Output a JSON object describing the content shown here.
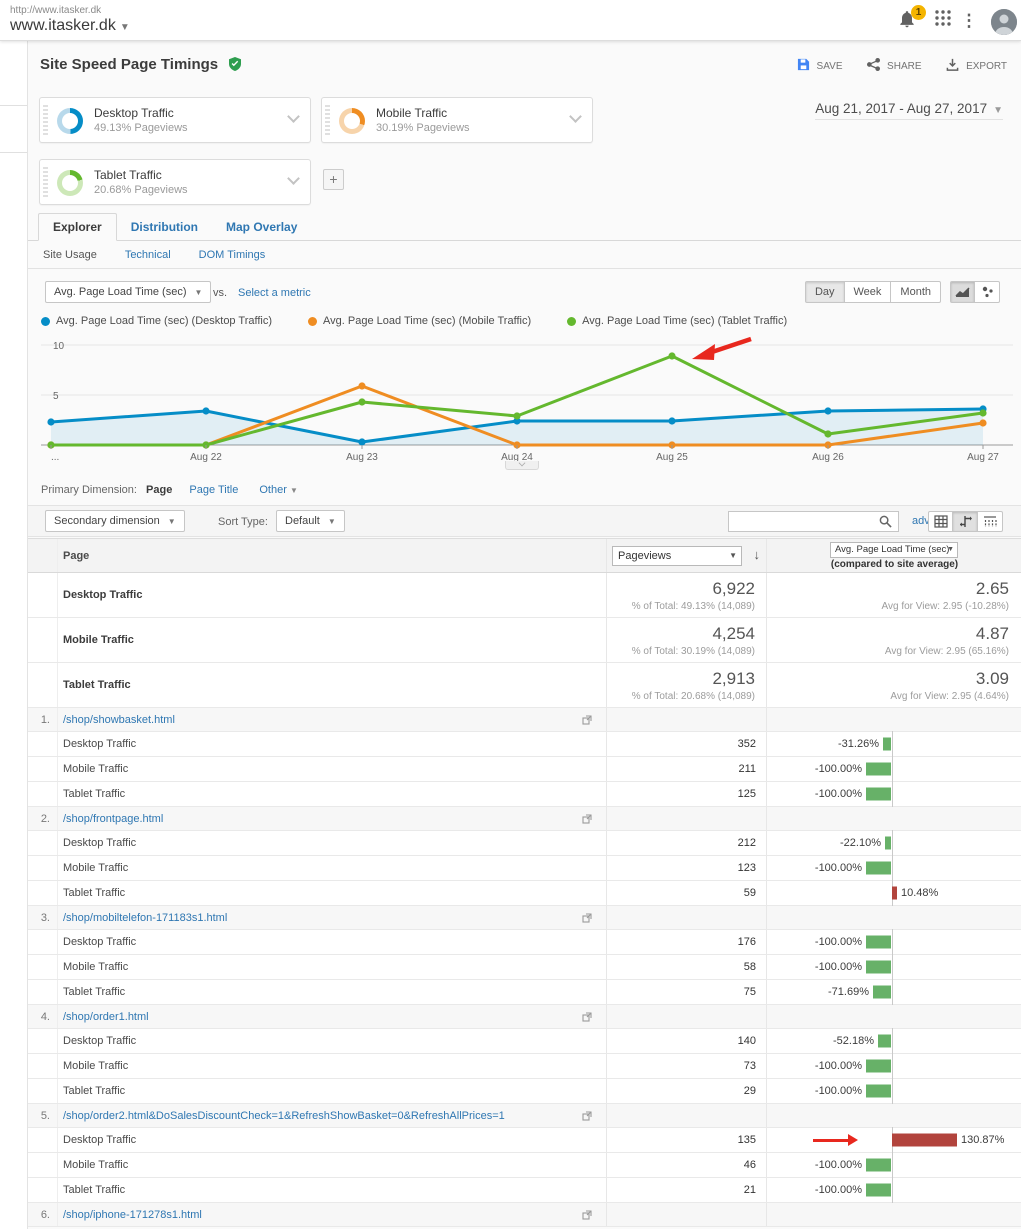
{
  "browser": {
    "url_small": "http://www.itasker.dk",
    "site_name": "www.itasker.dk",
    "notification_count": "1"
  },
  "report": {
    "title": "Site Speed Page Timings",
    "save_label": "SAVE",
    "share_label": "SHARE",
    "export_label": "EXPORT",
    "date_range": "Aug 21, 2017 - Aug 27, 2017",
    "add_segment_label": "+"
  },
  "segments": [
    {
      "name": "Desktop Traffic",
      "sub": "49.13% Pageviews",
      "pct": 49.13,
      "color": "#058dc7",
      "tint": "#b8d9eb"
    },
    {
      "name": "Mobile Traffic",
      "sub": "30.19% Pageviews",
      "pct": 30.19,
      "color": "#ef8d22",
      "tint": "#f7d4ab"
    },
    {
      "name": "Tablet Traffic",
      "sub": "20.68% Pageviews",
      "pct": 20.68,
      "color": "#64b82e",
      "tint": "#cde8b8"
    }
  ],
  "tabs": {
    "explorer": "Explorer",
    "distribution": "Distribution",
    "map_overlay": "Map Overlay"
  },
  "subtabs": {
    "site_usage": "Site Usage",
    "technical": "Technical",
    "dom_timings": "DOM Timings"
  },
  "metric_bar": {
    "metric": "Avg. Page Load Time (sec)",
    "vs": "vs.",
    "select_metric": "Select a metric",
    "day": "Day",
    "week": "Week",
    "month": "Month"
  },
  "chart_data": {
    "type": "line",
    "x": [
      "...",
      "Aug 22",
      "Aug 23",
      "Aug 24",
      "Aug 25",
      "Aug 26",
      "Aug 27"
    ],
    "ylim": [
      0,
      10
    ],
    "yticks": [
      {
        "v": 5,
        "label": "5"
      },
      {
        "v": 10,
        "label": "10"
      }
    ],
    "grid": true,
    "legend_position": "top",
    "series": [
      {
        "name": "Avg. Page Load Time (sec) (Desktop Traffic)",
        "color": "#058dc7",
        "area": true,
        "values": [
          2.3,
          3.4,
          0.3,
          2.4,
          2.4,
          3.4,
          3.6
        ]
      },
      {
        "name": "Avg. Page Load Time (sec) (Mobile Traffic)",
        "color": "#ef8d22",
        "values": [
          0,
          0,
          5.9,
          0,
          0,
          0,
          2.2
        ]
      },
      {
        "name": "Avg. Page Load Time (sec) (Tablet Traffic)",
        "color": "#64b82e",
        "values": [
          0,
          0,
          4.3,
          2.9,
          8.9,
          1.1,
          3.2
        ]
      }
    ],
    "annotation": {
      "type": "red-arrow",
      "points_at": "Tablet Traffic peak on Aug 25"
    }
  },
  "dimension_bar": {
    "label": "Primary Dimension:",
    "current": "Page",
    "alt1": "Page Title",
    "alt2": "Other"
  },
  "toolbar": {
    "secondary_dimension": "Secondary dimension",
    "sort_type_label": "Sort Type:",
    "sort_type_value": "Default",
    "search_value": "",
    "advanced": "advanced"
  },
  "table": {
    "col_page": "Page",
    "col_pageviews": "Pageviews",
    "col_avg": "Avg. Page Load Time (sec)",
    "col_avg_sub": "(compared to site average)",
    "summary": [
      {
        "label": "Desktop Traffic",
        "pv": "6,922",
        "pv_sub": "% of Total: 49.13% (14,089)",
        "avg": "2.65",
        "avg_sub": "Avg for View: 2.95 (-10.28%)"
      },
      {
        "label": "Mobile Traffic",
        "pv": "4,254",
        "pv_sub": "% of Total: 30.19% (14,089)",
        "avg": "4.87",
        "avg_sub": "Avg for View: 2.95 (65.16%)"
      },
      {
        "label": "Tablet Traffic",
        "pv": "2,913",
        "pv_sub": "% of Total: 20.68% (14,089)",
        "avg": "3.09",
        "avg_sub": "Avg for View: 2.95 (4.64%)"
      }
    ],
    "groups": [
      {
        "n": "1.",
        "url": "/shop/showbasket.html",
        "rows": [
          {
            "label": "Desktop Traffic",
            "pv": "352",
            "pct": -31.26,
            "pct_label": "-31.26%"
          },
          {
            "label": "Mobile Traffic",
            "pv": "211",
            "pct": -100,
            "pct_label": "-100.00%"
          },
          {
            "label": "Tablet Traffic",
            "pv": "125",
            "pct": -100,
            "pct_label": "-100.00%"
          }
        ]
      },
      {
        "n": "2.",
        "url": "/shop/frontpage.html",
        "rows": [
          {
            "label": "Desktop Traffic",
            "pv": "212",
            "pct": -22.1,
            "pct_label": "-22.10%"
          },
          {
            "label": "Mobile Traffic",
            "pv": "123",
            "pct": -100,
            "pct_label": "-100.00%"
          },
          {
            "label": "Tablet Traffic",
            "pv": "59",
            "pct": 10.48,
            "pct_label": "10.48%"
          }
        ]
      },
      {
        "n": "3.",
        "url": "/shop/mobiltelefon-171183s1.html",
        "rows": [
          {
            "label": "Desktop Traffic",
            "pv": "176",
            "pct": -100,
            "pct_label": "-100.00%"
          },
          {
            "label": "Mobile Traffic",
            "pv": "58",
            "pct": -100,
            "pct_label": "-100.00%"
          },
          {
            "label": "Tablet Traffic",
            "pv": "75",
            "pct": -71.69,
            "pct_label": "-71.69%"
          }
        ]
      },
      {
        "n": "4.",
        "url": "/shop/order1.html",
        "rows": [
          {
            "label": "Desktop Traffic",
            "pv": "140",
            "pct": -52.18,
            "pct_label": "-52.18%"
          },
          {
            "label": "Mobile Traffic",
            "pv": "73",
            "pct": -100,
            "pct_label": "-100.00%"
          },
          {
            "label": "Tablet Traffic",
            "pv": "29",
            "pct": -100,
            "pct_label": "-100.00%"
          }
        ]
      },
      {
        "n": "5.",
        "url": "/shop/order2.html&DoSalesDiscountCheck=1&RefreshShowBasket=0&RefreshAllPrices=1",
        "rows": [
          {
            "label": "Desktop Traffic",
            "pv": "135",
            "pct": 130.87,
            "pct_label": "130.87%",
            "annotated": true
          },
          {
            "label": "Mobile Traffic",
            "pv": "46",
            "pct": -100,
            "pct_label": "-100.00%"
          },
          {
            "label": "Tablet Traffic",
            "pv": "21",
            "pct": -100,
            "pct_label": "-100.00%"
          }
        ]
      },
      {
        "n": "6.",
        "url": "/shop/iphone-171278s1.html",
        "rows": []
      }
    ]
  },
  "colors": {
    "negative_bar": "#67b168",
    "positive_bar": "#b2443d",
    "annotation_red": "#e8281e",
    "link_blue": "#2f77b2",
    "notification_badge": "#f4b400"
  }
}
